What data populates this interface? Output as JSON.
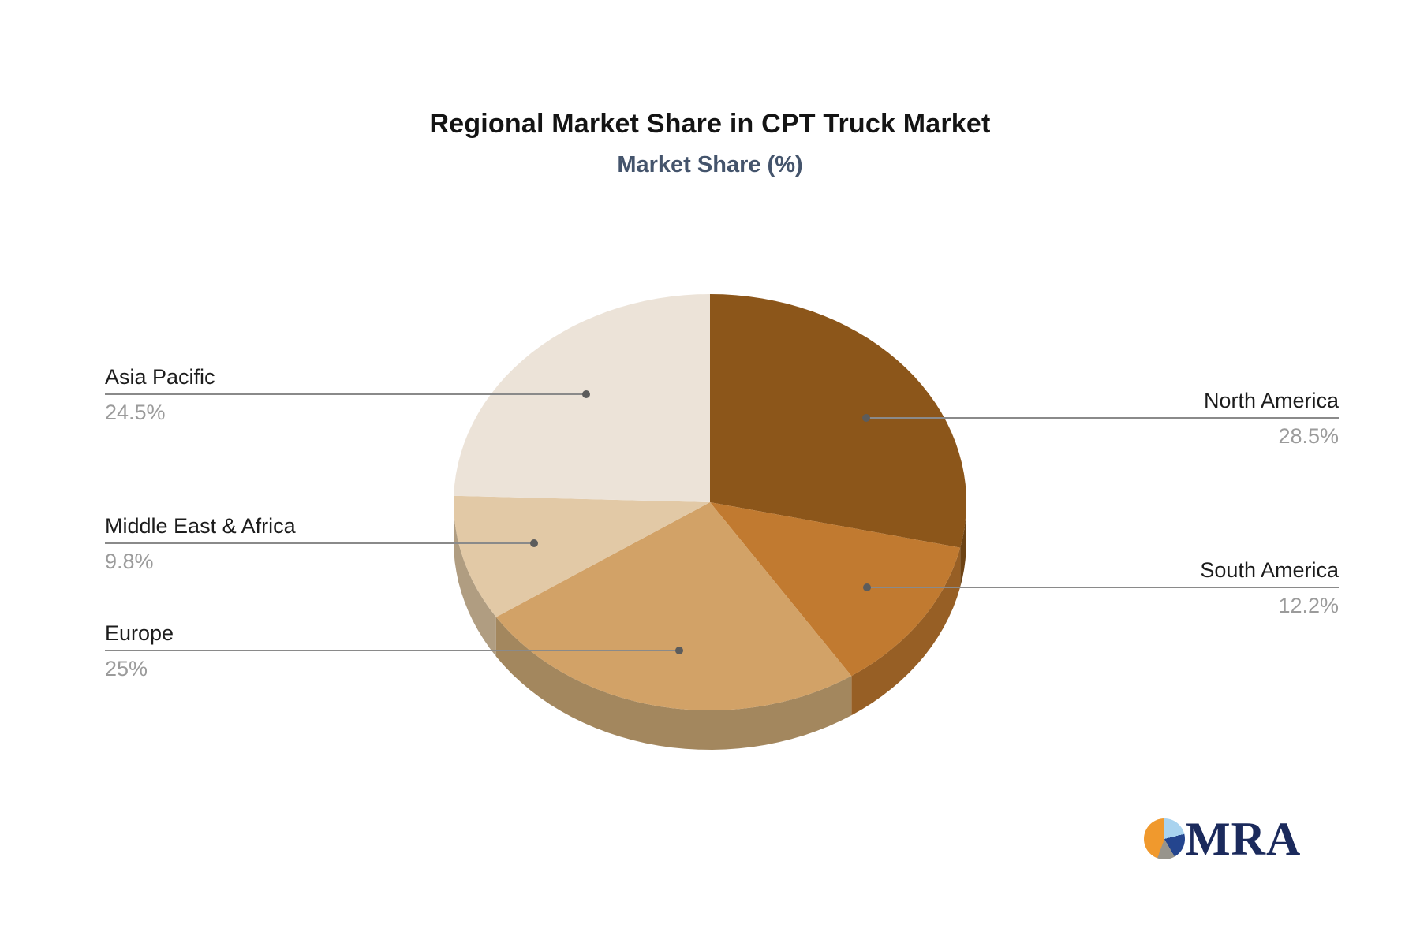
{
  "header": {
    "title": "Regional Market Share in CPT Truck Market",
    "subtitle": "Market Share (%)"
  },
  "chart_data": {
    "type": "pie",
    "title": "Regional Market Share in CPT Truck Market",
    "subtitle": "Market Share (%)",
    "value_unit": "%",
    "direction": "clockwise",
    "start_angle_deg": 0,
    "effect": "3d-depth",
    "legend_position": "none",
    "leader_line_color": "#8a8a8a",
    "leader_dot_color": "#5c5c5c",
    "slices": [
      {
        "label": "North America",
        "value": 28.5,
        "display": "28.5%",
        "color": "#8C561A",
        "side_color": "#6D4314"
      },
      {
        "label": "South America",
        "value": 12.2,
        "display": "12.2%",
        "color": "#C17A30",
        "side_color": "#975F25"
      },
      {
        "label": "Europe",
        "value": 25,
        "display": "25%",
        "color": "#D2A267",
        "side_color": "#A3875E"
      },
      {
        "label": "Middle East & Africa",
        "value": 9.8,
        "display": "9.8%",
        "color": "#E2C9A6",
        "side_color": "#B09D81"
      },
      {
        "label": "Asia Pacific",
        "value": 24.5,
        "display": "24.5%",
        "color": "#ECE3D8",
        "side_color": "#B8B0A3"
      }
    ]
  },
  "logo": {
    "text": "MRA",
    "text_color": "#1b2a5c",
    "icon_colors": {
      "orange": "#f0992d",
      "light_blue": "#a9d3ef",
      "navy": "#24458e",
      "gray": "#97948c"
    }
  }
}
